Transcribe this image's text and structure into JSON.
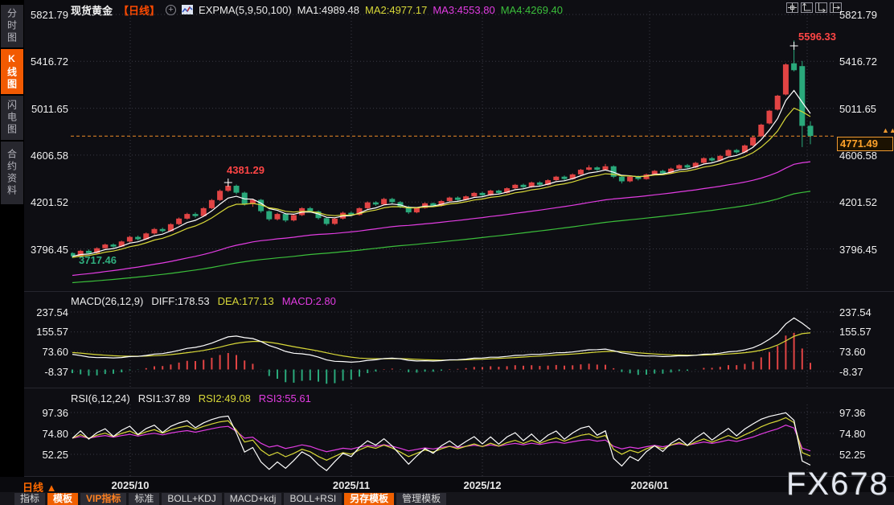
{
  "header": {
    "symbol": "现货黄金",
    "period_tag": "【日线】",
    "expma_title": "EXPMA(5,9,50,100)",
    "ma1": "MA1:4989.48",
    "ma2": "MA2:4977.17",
    "ma3": "MA3:4553.80",
    "ma4": "MA4:4269.40"
  },
  "sidebar": {
    "items": [
      {
        "label": "分时图",
        "active": false
      },
      {
        "label": "K线图",
        "active": true
      },
      {
        "label": "闪电图",
        "active": false
      },
      {
        "label": "合约资料",
        "active": false
      }
    ]
  },
  "price_axis": {
    "labels": [
      "5821.79",
      "5416.72",
      "5011.65",
      "4606.58",
      "4201.52",
      "3796.45"
    ],
    "current_price": "4771.49"
  },
  "macd_pane": {
    "title": "MACD(26,12,9)",
    "diff": "DIFF:178.53",
    "dea": "DEA:177.13",
    "macd": "MACD:2.80",
    "axis_labels": [
      "237.54",
      "155.57",
      "73.60",
      "-8.37"
    ]
  },
  "rsi_pane": {
    "title": "RSI(6,12,24)",
    "rsi1": "RSI1:37.89",
    "rsi2": "RSI2:49.08",
    "rsi3": "RSI3:55.61",
    "axis_labels": [
      "97.36",
      "74.80",
      "52.25"
    ]
  },
  "footer": {
    "period_label": "日线 ▲",
    "months": [
      "2025/10",
      "2025/11",
      "2025/12",
      "2026/01"
    ],
    "tabs": [
      {
        "label": "指标",
        "style": "plain"
      },
      {
        "label": "模板",
        "style": "active"
      },
      {
        "label": "VIP指标",
        "style": "vip"
      },
      {
        "label": "标准",
        "style": "plain"
      },
      {
        "label": "BOLL+KDJ",
        "style": "plain"
      },
      {
        "label": "MACD+kdj",
        "style": "plain"
      },
      {
        "label": "BOLL+RSI",
        "style": "plain"
      },
      {
        "label": "另存模板",
        "style": "active"
      },
      {
        "label": "管理模板",
        "style": "plain"
      }
    ]
  },
  "watermark": {
    "text": "FX678"
  },
  "colors": {
    "up": "#e14444",
    "down": "#2aa97b",
    "ma1": "#ffffff",
    "ma2": "#d8d838",
    "ma3": "#e23ce2",
    "ma4": "#3bbf3b",
    "accent_orange": "#ff6a00",
    "grid": "#3a3a44",
    "current_price_line": "#f08c28"
  },
  "chart_data": {
    "type": "candlestick",
    "title": "现货黄金 日线",
    "y_axis_ticks": [
      5821.79,
      5416.72,
      5011.65,
      4606.58,
      4201.52,
      3796.45
    ],
    "x_axis_ticks": [
      "2025/10",
      "2025/11",
      "2025/12",
      "2026/01"
    ],
    "current_price": 4771.49,
    "expma": {
      "periods": [
        5,
        9,
        50,
        100
      ],
      "last_values": [
        4989.48,
        4977.17,
        4553.8,
        4269.4
      ],
      "seeds": [
        3732,
        3720,
        3560,
        3500
      ],
      "line_colors": [
        "#ffffff",
        "#d8d838",
        "#e23ce2",
        "#3bbf3b"
      ]
    },
    "candles": [
      [
        3760,
        3768,
        3717.46,
        3732
      ],
      [
        3732,
        3788,
        3726,
        3780
      ],
      [
        3780,
        3792,
        3752,
        3760
      ],
      [
        3760,
        3810,
        3755,
        3802
      ],
      [
        3802,
        3842,
        3795,
        3834
      ],
      [
        3834,
        3844,
        3806,
        3816
      ],
      [
        3816,
        3868,
        3812,
        3860
      ],
      [
        3860,
        3910,
        3852,
        3900
      ],
      [
        3900,
        3912,
        3868,
        3880
      ],
      [
        3880,
        3938,
        3874,
        3930
      ],
      [
        3930,
        3978,
        3920,
        3968
      ],
      [
        3968,
        3980,
        3938,
        3950
      ],
      [
        3950,
        4018,
        3946,
        4010
      ],
      [
        4010,
        4068,
        4002,
        4058
      ],
      [
        4058,
        4108,
        4050,
        4098
      ],
      [
        4098,
        4112,
        4066,
        4080
      ],
      [
        4080,
        4158,
        4074,
        4148
      ],
      [
        4148,
        4228,
        4140,
        4218
      ],
      [
        4218,
        4310,
        4210,
        4298
      ],
      [
        4298,
        4381.29,
        4288,
        4342
      ],
      [
        4342,
        4352,
        4268,
        4282
      ],
      [
        4282,
        4292,
        4170,
        4184
      ],
      [
        4184,
        4230,
        4160,
        4220
      ],
      [
        4220,
        4228,
        4108,
        4122
      ],
      [
        4122,
        4130,
        4038,
        4052
      ],
      [
        4052,
        4108,
        4042,
        4098
      ],
      [
        4098,
        4106,
        4028,
        4042
      ],
      [
        4042,
        4096,
        4034,
        4088
      ],
      [
        4088,
        4156,
        4080,
        4148
      ],
      [
        4148,
        4160,
        4108,
        4120
      ],
      [
        4120,
        4128,
        4050,
        4062
      ],
      [
        4062,
        4072,
        3998,
        4012
      ],
      [
        4012,
        4066,
        4004,
        4058
      ],
      [
        4058,
        4118,
        4050,
        4108
      ],
      [
        4108,
        4118,
        4078,
        4090
      ],
      [
        4090,
        4156,
        4084,
        4148
      ],
      [
        4148,
        4206,
        4140,
        4198
      ],
      [
        4198,
        4208,
        4168,
        4180
      ],
      [
        4180,
        4238,
        4174,
        4228
      ],
      [
        4228,
        4238,
        4188,
        4200
      ],
      [
        4200,
        4210,
        4148,
        4160
      ],
      [
        4160,
        4170,
        4098,
        4112
      ],
      [
        4112,
        4158,
        4104,
        4150
      ],
      [
        4150,
        4198,
        4144,
        4190
      ],
      [
        4190,
        4198,
        4158,
        4170
      ],
      [
        4170,
        4218,
        4162,
        4210
      ],
      [
        4210,
        4248,
        4202,
        4240
      ],
      [
        4240,
        4250,
        4208,
        4220
      ],
      [
        4220,
        4258,
        4214,
        4250
      ],
      [
        4250,
        4288,
        4244,
        4280
      ],
      [
        4280,
        4290,
        4248,
        4260
      ],
      [
        4260,
        4308,
        4254,
        4300
      ],
      [
        4300,
        4308,
        4268,
        4280
      ],
      [
        4280,
        4328,
        4274,
        4320
      ],
      [
        4320,
        4358,
        4314,
        4350
      ],
      [
        4350,
        4360,
        4318,
        4330
      ],
      [
        4330,
        4378,
        4324,
        4370
      ],
      [
        4370,
        4380,
        4338,
        4350
      ],
      [
        4350,
        4398,
        4344,
        4390
      ],
      [
        4390,
        4428,
        4384,
        4420
      ],
      [
        4420,
        4430,
        4388,
        4400
      ],
      [
        4400,
        4448,
        4394,
        4440
      ],
      [
        4440,
        4488,
        4434,
        4480
      ],
      [
        4480,
        4520,
        4474,
        4500
      ],
      [
        4500,
        4510,
        4468,
        4480
      ],
      [
        4480,
        4530,
        4474,
        4510
      ],
      [
        4510,
        4518,
        4408,
        4420
      ],
      [
        4420,
        4430,
        4362,
        4380
      ],
      [
        4380,
        4428,
        4372,
        4420
      ],
      [
        4420,
        4430,
        4388,
        4400
      ],
      [
        4400,
        4448,
        4394,
        4440
      ],
      [
        4440,
        4478,
        4434,
        4470
      ],
      [
        4470,
        4480,
        4438,
        4450
      ],
      [
        4450,
        4498,
        4444,
        4490
      ],
      [
        4490,
        4528,
        4484,
        4520
      ],
      [
        4520,
        4530,
        4488,
        4500
      ],
      [
        4500,
        4548,
        4494,
        4540
      ],
      [
        4540,
        4588,
        4534,
        4580
      ],
      [
        4580,
        4590,
        4548,
        4560
      ],
      [
        4560,
        4608,
        4554,
        4600
      ],
      [
        4600,
        4658,
        4594,
        4650
      ],
      [
        4650,
        4660,
        4618,
        4630
      ],
      [
        4630,
        4698,
        4624,
        4690
      ],
      [
        4690,
        4768,
        4684,
        4760
      ],
      [
        4770,
        4878,
        4762,
        4870
      ],
      [
        4880,
        4998,
        4872,
        4990
      ],
      [
        5000,
        5128,
        4992,
        5120
      ],
      [
        5130,
        5400,
        5122,
        5390
      ],
      [
        5400,
        5596.33,
        5330,
        5340
      ],
      [
        5376,
        5420,
        4676,
        4860
      ],
      [
        4860,
        4900,
        4700,
        4771.49
      ]
    ],
    "annotations": [
      {
        "label": "5596.33",
        "index": 88,
        "price": 5596.33,
        "type": "high"
      },
      {
        "label": "4381.29",
        "index": 19,
        "price": 4381.29,
        "type": "swing-high"
      },
      {
        "label": "3717.46",
        "index": 0,
        "price": 3717.46,
        "type": "low"
      }
    ],
    "macd": {
      "params": [
        26,
        12,
        9
      ],
      "diff": 178.53,
      "dea": 177.13,
      "macd": 2.8,
      "axis_ticks": [
        237.54,
        155.57,
        73.6,
        -8.37
      ],
      "seeds": {
        "ema12": 3795,
        "ema26": 3722,
        "dea": 72
      }
    },
    "rsi": {
      "params": [
        6,
        12,
        24
      ],
      "rsi1": 37.89,
      "rsi2": 49.08,
      "rsi3": 55.61,
      "axis_ticks": [
        97.36,
        74.8,
        52.25
      ],
      "seed_gain": 23,
      "seed_loss": 10,
      "line_colors": [
        "#ffffff",
        "#d8d838",
        "#e23ce2"
      ]
    }
  }
}
